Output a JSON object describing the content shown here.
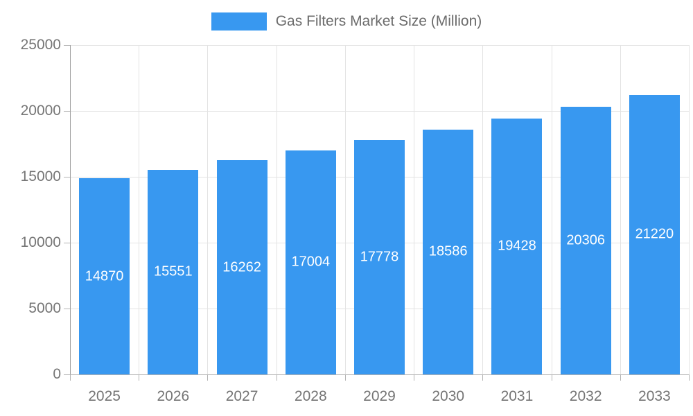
{
  "chart_data": {
    "type": "bar",
    "title": "Gas Filters Market Size (Million)",
    "categories": [
      "2025",
      "2026",
      "2027",
      "2028",
      "2029",
      "2030",
      "2031",
      "2032",
      "2033"
    ],
    "series": [
      {
        "name": "Gas Filters Market Size (Million)",
        "values": [
          14870,
          15551,
          16262,
          17004,
          17778,
          18586,
          19428,
          20306,
          21220
        ]
      }
    ],
    "xlabel": "",
    "ylabel": "",
    "ylim": [
      0,
      25000
    ],
    "yticks": [
      0,
      5000,
      10000,
      15000,
      20000,
      25000
    ],
    "grid": true,
    "legend_position": "top",
    "bar_color": "#3898f0",
    "value_label_color": "#ffffff",
    "axis_text_color": "#757575",
    "legend_text_color": "#6b6b6b",
    "grid_color": "#e3e3e3",
    "axis_line_color": "#b3b3b3"
  }
}
